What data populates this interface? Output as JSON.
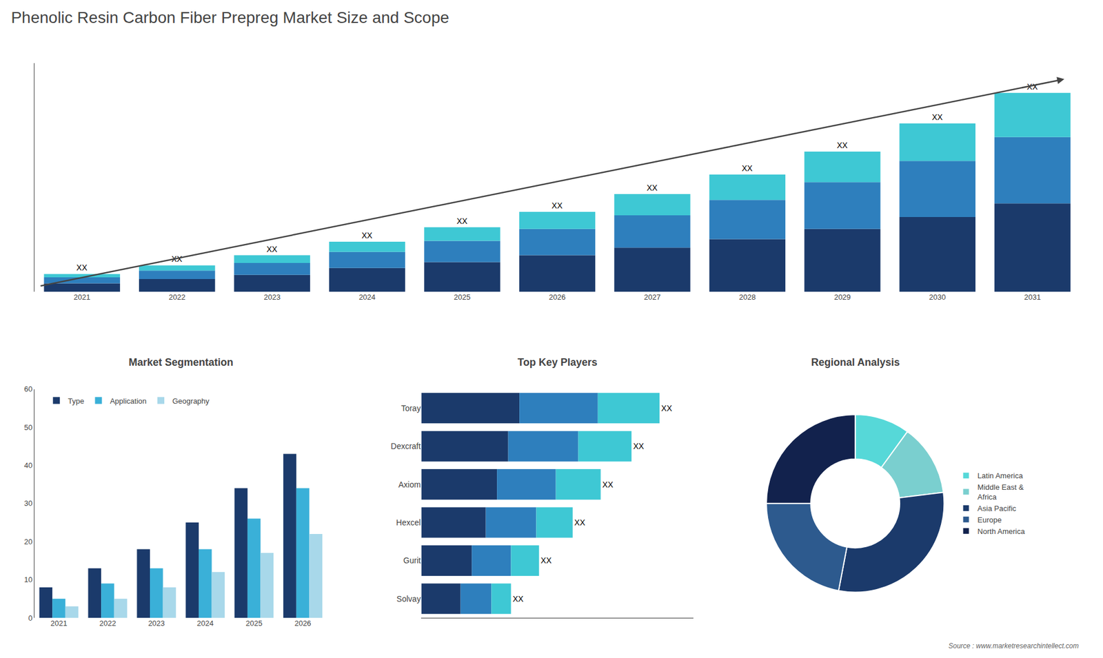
{
  "title": "Phenolic Resin Carbon Fiber Prepreg Market Size and Scope",
  "annotations": [
    "Source : www.marketresearchintellect.com"
  ],
  "chart_data": [
    {
      "type": "bar",
      "stacked": true,
      "categories": [
        "2021",
        "2022",
        "2023",
        "2024",
        "2025",
        "2026",
        "2027",
        "2028",
        "2029",
        "2030",
        "2031"
      ],
      "series": [
        {
          "color": "#1b3a6b",
          "values": [
            1.0,
            1.5,
            2.0,
            2.8,
            3.5,
            4.3,
            5.2,
            6.2,
            7.4,
            8.8,
            10.4
          ]
        },
        {
          "color": "#2e7fbd",
          "values": [
            0.7,
            1.0,
            1.4,
            1.9,
            2.5,
            3.1,
            3.8,
            4.6,
            5.5,
            6.6,
            7.8
          ]
        },
        {
          "color": "#3ec8d4",
          "values": [
            0.4,
            0.6,
            0.9,
            1.2,
            1.6,
            2.0,
            2.5,
            3.0,
            3.6,
            4.4,
            5.2
          ]
        }
      ],
      "annotations": [
        "XX",
        "XX",
        "XX",
        "XX",
        "XX",
        "XX",
        "XX",
        "XX",
        "XX",
        "XX",
        "XX"
      ],
      "ylim": [
        0,
        26.9
      ],
      "tick_labels": "x",
      "grid": false
    },
    {
      "type": "bar",
      "title": "Market Segmentation",
      "categories": [
        "2021",
        "2022",
        "2023",
        "2024",
        "2025",
        "2026"
      ],
      "series": [
        {
          "name": "Type",
          "color": "#1b3a6b",
          "values": [
            8,
            13,
            18,
            25,
            34,
            43
          ]
        },
        {
          "name": "Application",
          "color": "#3ab0d8",
          "values": [
            5,
            9,
            13,
            18,
            26,
            34
          ]
        },
        {
          "name": "Geography",
          "color": "#a8d8ea",
          "values": [
            3,
            5,
            8,
            12,
            17,
            22
          ]
        }
      ],
      "ylim": [
        0,
        60
      ],
      "yticks": [
        0,
        10,
        20,
        30,
        40,
        50,
        60
      ],
      "legend": "upper left",
      "grid": false
    },
    {
      "type": "bar",
      "title": "Top Key Players",
      "orientation": "horizontal",
      "stacked": true,
      "categories": [
        "Toray",
        "Dexcraft",
        "Axiom",
        "Hexcel",
        "Gurit",
        "Solvay"
      ],
      "series": [
        {
          "color": "#1b3a6b",
          "values": [
            3.5,
            3.1,
            2.7,
            2.3,
            1.8,
            1.4
          ]
        },
        {
          "color": "#2e7fbd",
          "values": [
            2.8,
            2.5,
            2.1,
            1.8,
            1.4,
            1.1
          ]
        },
        {
          "color": "#3ec8d4",
          "values": [
            2.2,
            1.9,
            1.6,
            1.3,
            1.0,
            0.7
          ]
        }
      ],
      "annotations": [
        "XX",
        "XX",
        "XX",
        "XX",
        "XX",
        "XX"
      ],
      "xlim": [
        0,
        9.7
      ],
      "tick_labels": "y",
      "grid": false
    },
    {
      "type": "donut",
      "title": "Regional Analysis",
      "categories": [
        "Latin America",
        "Middle East &\nAfrica",
        "Asia Pacific",
        "Europe",
        "North America"
      ],
      "values": [
        10,
        13,
        30,
        22,
        25
      ],
      "colors": [
        "#56d8d8",
        "#7acfcf",
        "#1b3a6b",
        "#2d5a8e",
        "#12224d"
      ],
      "legend": "right"
    }
  ]
}
